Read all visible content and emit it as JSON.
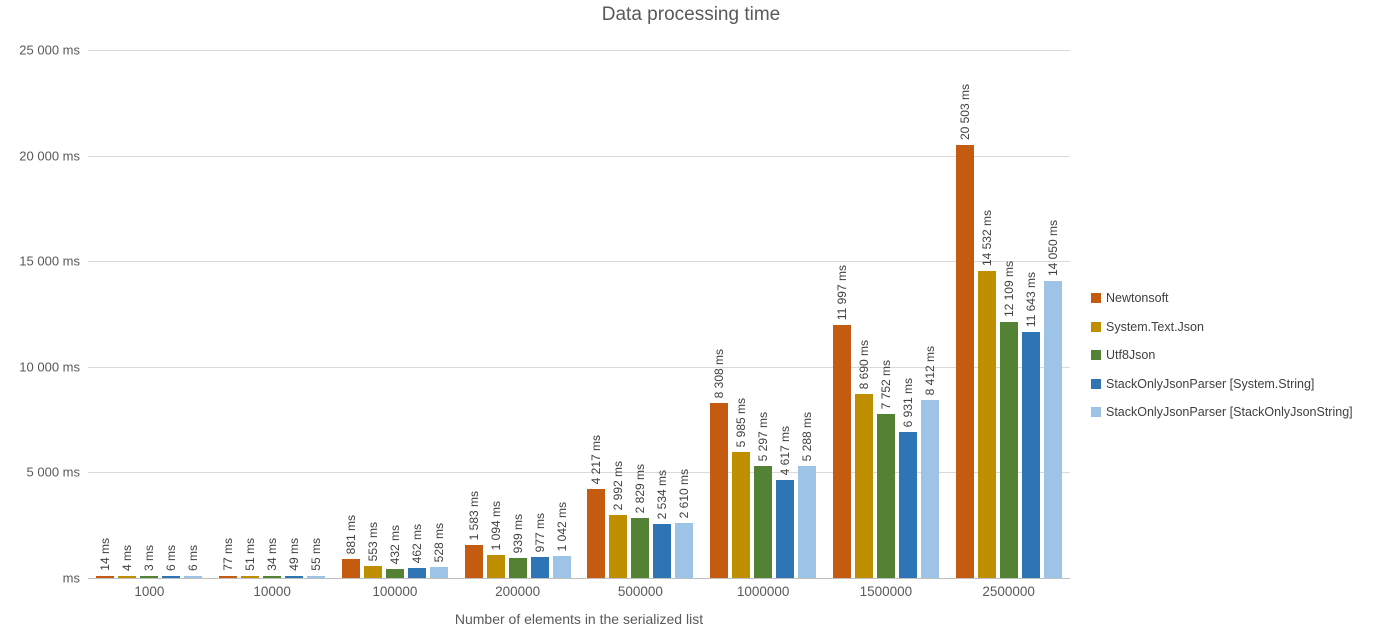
{
  "chart_data": {
    "type": "bar",
    "title": "Data processing time",
    "xlabel": "Number of elements in the serialized list",
    "ylabel": "",
    "ylim": [
      0,
      25000
    ],
    "grid": true,
    "legend_position": "right",
    "y_tick_labels_top_to_bottom": [
      "25 000 ms",
      "20 000 ms",
      "15 000 ms",
      "10 000 ms",
      "5 000 ms",
      "ms"
    ],
    "categories": [
      "1000",
      "10000",
      "100000",
      "200000",
      "500000",
      "1000000",
      "1500000",
      "2500000"
    ],
    "series": [
      {
        "name": "Newtonsoft",
        "color": "#C55A11",
        "values": [
          14,
          77,
          881,
          1583,
          4217,
          8308,
          11997,
          20503
        ],
        "labels": [
          "14 ms",
          "77 ms",
          "881 ms",
          "1 583 ms",
          "4 217 ms",
          "8 308 ms",
          "11 997 ms",
          "20 503 ms"
        ]
      },
      {
        "name": "System.Text.Json",
        "color": "#BF8F00",
        "values": [
          4,
          51,
          553,
          1094,
          2992,
          5985,
          8690,
          14532
        ],
        "labels": [
          "4 ms",
          "51 ms",
          "553 ms",
          "1 094 ms",
          "2 992 ms",
          "5 985 ms",
          "8 690 ms",
          "14 532 ms"
        ]
      },
      {
        "name": "Utf8Json",
        "color": "#548235",
        "values": [
          3,
          34,
          432,
          939,
          2829,
          5297,
          7752,
          12109
        ],
        "labels": [
          "3 ms",
          "34 ms",
          "432 ms",
          "939 ms",
          "2 829 ms",
          "5 297 ms",
          "7 752 ms",
          "12 109 ms"
        ]
      },
      {
        "name": "StackOnlyJsonParser [System.String]",
        "color": "#2E75B6",
        "values": [
          6,
          49,
          462,
          977,
          2534,
          4617,
          6931,
          11643
        ],
        "labels": [
          "6 ms",
          "49 ms",
          "462 ms",
          "977 ms",
          "2 534 ms",
          "4 617 ms",
          "6 931 ms",
          "11 643 ms"
        ]
      },
      {
        "name": "StackOnlyJsonParser [StackOnlyJsonString]",
        "color": "#9DC3E6",
        "values": [
          6,
          55,
          528,
          1042,
          2610,
          5288,
          8412,
          14050
        ],
        "labels": [
          "6 ms",
          "55 ms",
          "528 ms",
          "1 042 ms",
          "2 610 ms",
          "5 288 ms",
          "8 412 ms",
          "14 050 ms"
        ]
      }
    ]
  }
}
